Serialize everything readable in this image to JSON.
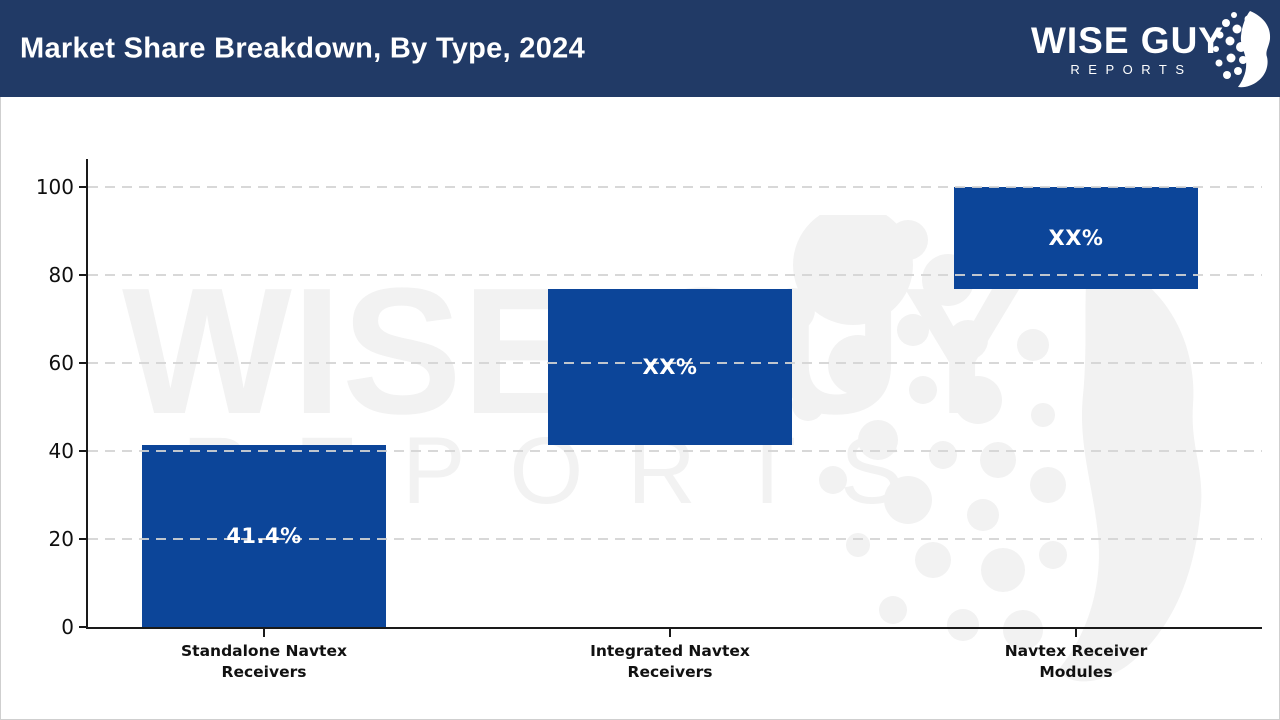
{
  "header": {
    "title": "Market Share Breakdown, By Type, 2024",
    "logo": {
      "line1": "WISE GUY",
      "line2": "REPORTS"
    }
  },
  "watermark": {
    "line1": "WISE GUY",
    "line2": "REPORTS"
  },
  "colors": {
    "header_bg": "#213a66",
    "bar_blue": "#0c4599",
    "watermark_gray": "#f2f2f2",
    "grid_gray": "#d6d6d6",
    "axis_black": "#1a1a1a"
  },
  "chart_data": {
    "type": "bar",
    "subtype": "stacked-waterfall",
    "title": "Market Share Breakdown, By Type, 2024",
    "categories": [
      "Standalone Navtex\nReceivers",
      "Integrated Navtex\nReceivers",
      "Navtex Receiver\nModules"
    ],
    "segments": [
      {
        "category": "Standalone Navtex Receivers",
        "start": 0,
        "end": 41.4,
        "value": 41.4,
        "value_label": "41.4%"
      },
      {
        "category": "Integrated Navtex Receivers",
        "start": 41.4,
        "end": 76.9,
        "value": 35.5,
        "value_label": "XX%"
      },
      {
        "category": "Navtex Receiver Modules",
        "start": 76.9,
        "end": 100,
        "value": 23.1,
        "value_label": "XX%"
      }
    ],
    "yticks": [
      0,
      20,
      40,
      60,
      80,
      100
    ],
    "ylim": [
      0,
      100
    ],
    "grid": "dashed-horizontal",
    "legend": false,
    "xlabel": "",
    "ylabel": ""
  }
}
